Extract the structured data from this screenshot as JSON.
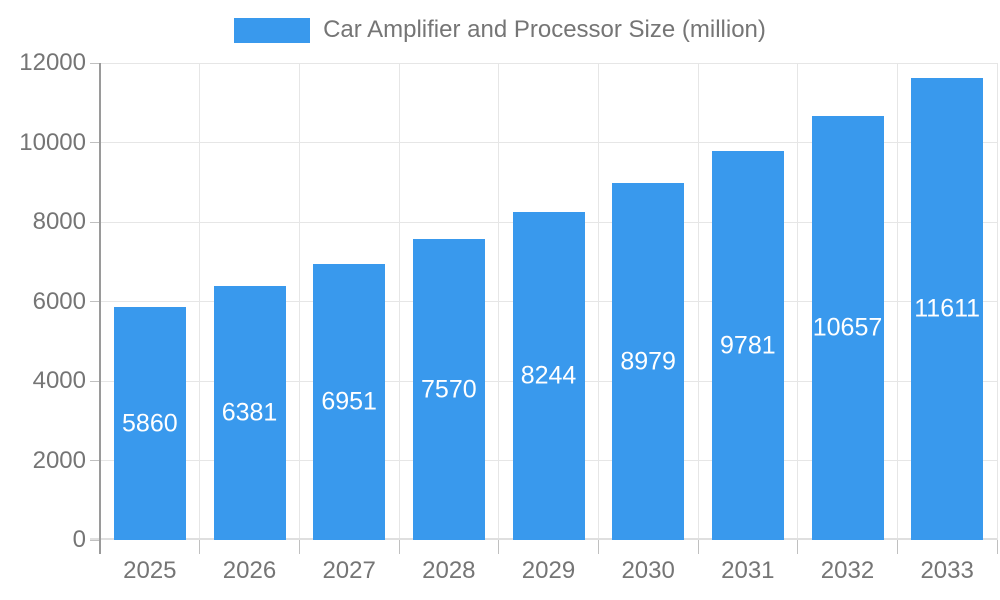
{
  "chart_data": {
    "type": "bar",
    "title": "Car Amplifier and Processor Size (million)",
    "legend": [
      "Car Amplifier and Processor Size (million)"
    ],
    "legend_position": "top",
    "categories": [
      "2025",
      "2026",
      "2027",
      "2028",
      "2029",
      "2030",
      "2031",
      "2032",
      "2033"
    ],
    "values": [
      5860,
      6381,
      6951,
      7570,
      8244,
      8979,
      9781,
      10657,
      11611
    ],
    "xlabel": "",
    "ylabel": "",
    "ylim": [
      0,
      12000
    ],
    "yticks": [
      0,
      2000,
      4000,
      6000,
      8000,
      10000,
      12000
    ],
    "grid": true,
    "value_labels_shown": true,
    "colors": {
      "bar": "#3999ed",
      "axis_text": "#757575",
      "value_label": "#ffffff",
      "gridline": "#e6e6e6",
      "y_axis_line": "#9a9a9a",
      "background": "#ffffff"
    }
  }
}
